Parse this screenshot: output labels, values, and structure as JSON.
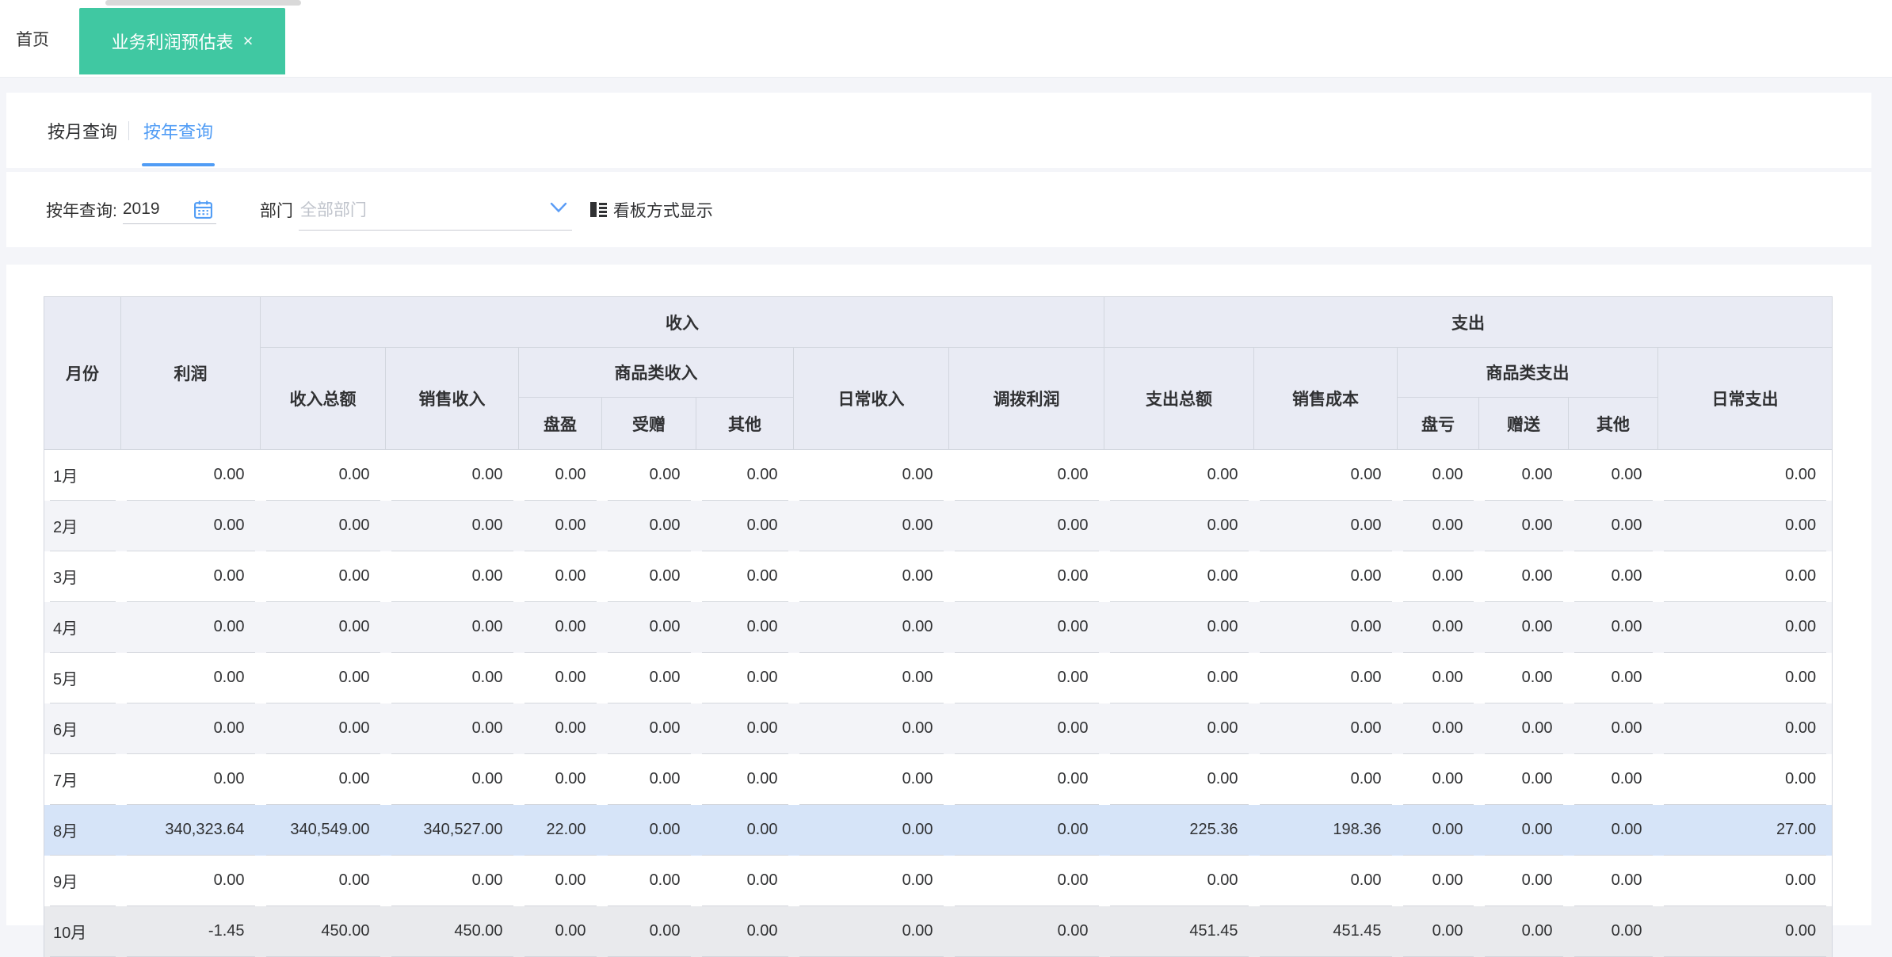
{
  "tabbar": {
    "home_tab": "首页",
    "active_tab": "业务利润预估表",
    "close_glyph": "×"
  },
  "subtabs": {
    "by_month": "按月查询",
    "by_year": "按年查询"
  },
  "filters": {
    "year_label": "按年查询:",
    "year_value": "2019",
    "dept_label": "部门",
    "dept_placeholder": "全部部门",
    "board_button": "看板方式显示"
  },
  "table": {
    "headers": {
      "month": "月份",
      "profit": "利润",
      "income_group": "收入",
      "expense_group": "支出",
      "income_total": "收入总额",
      "sales_income": "销售收入",
      "goods_income_group": "商品类收入",
      "surplus": "盘盈",
      "gift_received": "受赠",
      "other_income": "其他",
      "daily_income": "日常收入",
      "transfer_profit": "调拨利润",
      "expense_total": "支出总额",
      "sales_cost": "销售成本",
      "goods_expense_group": "商品类支出",
      "loss": "盘亏",
      "gift_given": "赠送",
      "other_expense": "其他",
      "daily_expense": "日常支出"
    },
    "rows": [
      {
        "month": "1月",
        "highlighted": false,
        "partial": false,
        "values": [
          "0.00",
          "0.00",
          "0.00",
          "0.00",
          "0.00",
          "0.00",
          "0.00",
          "0.00",
          "0.00",
          "0.00",
          "0.00",
          "0.00",
          "0.00",
          "0.00"
        ]
      },
      {
        "month": "2月",
        "highlighted": false,
        "partial": false,
        "values": [
          "0.00",
          "0.00",
          "0.00",
          "0.00",
          "0.00",
          "0.00",
          "0.00",
          "0.00",
          "0.00",
          "0.00",
          "0.00",
          "0.00",
          "0.00",
          "0.00"
        ]
      },
      {
        "month": "3月",
        "highlighted": false,
        "partial": false,
        "values": [
          "0.00",
          "0.00",
          "0.00",
          "0.00",
          "0.00",
          "0.00",
          "0.00",
          "0.00",
          "0.00",
          "0.00",
          "0.00",
          "0.00",
          "0.00",
          "0.00"
        ]
      },
      {
        "month": "4月",
        "highlighted": false,
        "partial": false,
        "values": [
          "0.00",
          "0.00",
          "0.00",
          "0.00",
          "0.00",
          "0.00",
          "0.00",
          "0.00",
          "0.00",
          "0.00",
          "0.00",
          "0.00",
          "0.00",
          "0.00"
        ]
      },
      {
        "month": "5月",
        "highlighted": false,
        "partial": false,
        "values": [
          "0.00",
          "0.00",
          "0.00",
          "0.00",
          "0.00",
          "0.00",
          "0.00",
          "0.00",
          "0.00",
          "0.00",
          "0.00",
          "0.00",
          "0.00",
          "0.00"
        ]
      },
      {
        "month": "6月",
        "highlighted": false,
        "partial": false,
        "values": [
          "0.00",
          "0.00",
          "0.00",
          "0.00",
          "0.00",
          "0.00",
          "0.00",
          "0.00",
          "0.00",
          "0.00",
          "0.00",
          "0.00",
          "0.00",
          "0.00"
        ]
      },
      {
        "month": "7月",
        "highlighted": false,
        "partial": false,
        "values": [
          "0.00",
          "0.00",
          "0.00",
          "0.00",
          "0.00",
          "0.00",
          "0.00",
          "0.00",
          "0.00",
          "0.00",
          "0.00",
          "0.00",
          "0.00",
          "0.00"
        ]
      },
      {
        "month": "8月",
        "highlighted": true,
        "partial": false,
        "values": [
          "340,323.64",
          "340,549.00",
          "340,527.00",
          "22.00",
          "0.00",
          "0.00",
          "0.00",
          "0.00",
          "225.36",
          "198.36",
          "0.00",
          "0.00",
          "0.00",
          "27.00"
        ]
      },
      {
        "month": "9月",
        "highlighted": false,
        "partial": false,
        "values": [
          "0.00",
          "0.00",
          "0.00",
          "0.00",
          "0.00",
          "0.00",
          "0.00",
          "0.00",
          "0.00",
          "0.00",
          "0.00",
          "0.00",
          "0.00",
          "0.00"
        ]
      },
      {
        "month": "10月",
        "highlighted": false,
        "partial": true,
        "values": [
          "-1.45",
          "450.00",
          "450.00",
          "0.00",
          "0.00",
          "0.00",
          "0.00",
          "0.00",
          "451.45",
          "451.45",
          "0.00",
          "0.00",
          "0.00",
          "0.00"
        ]
      }
    ]
  },
  "colors": {
    "accent_teal": "#40c8a2",
    "accent_blue": "#509cf5",
    "header_bg": "#e9ebf4",
    "highlight_row": "#d6e4f8",
    "zebra_row": "#f3f4f8",
    "page_bg": "#f4f5f9"
  }
}
